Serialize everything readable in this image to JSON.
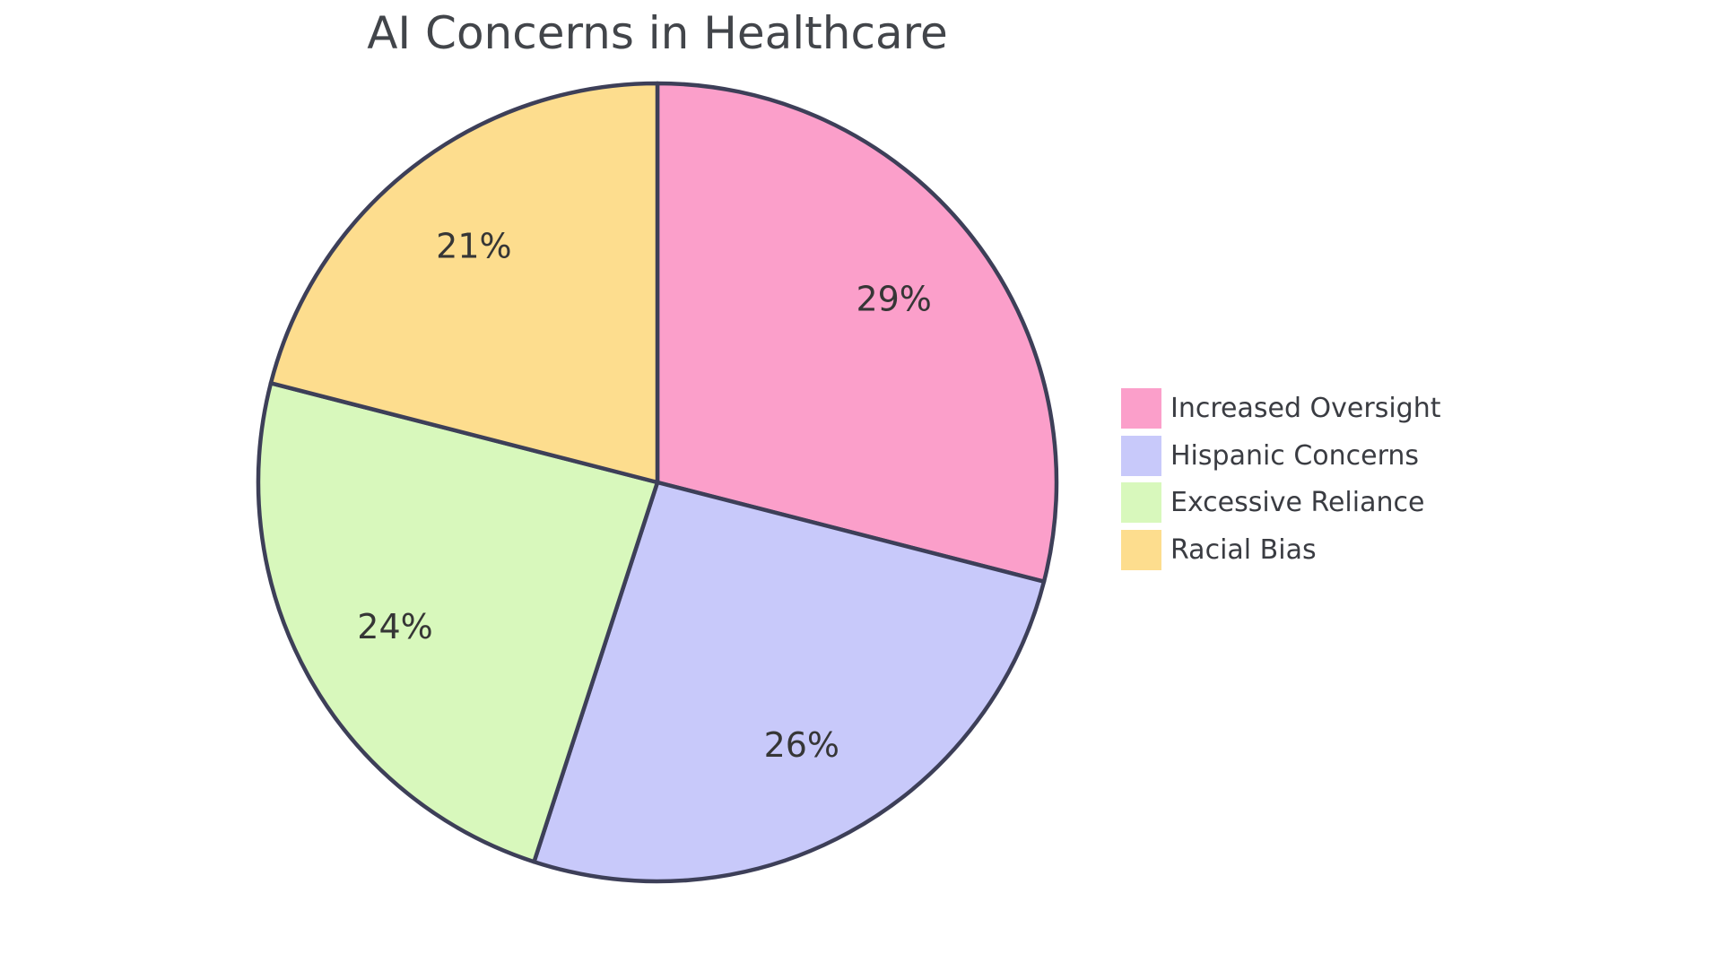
{
  "chart_data": {
    "type": "pie",
    "title": "AI Concerns in Healthcare",
    "labels": [
      "Increased Oversight",
      "Hispanic Concerns",
      "Excessive Reliance",
      "Racial Bias"
    ],
    "values": [
      29,
      26,
      24,
      21
    ],
    "percent_labels": [
      "29%",
      "26%",
      "24%",
      "21%"
    ],
    "colors": [
      "#FB9FCA",
      "#C8C9FA",
      "#D8F8BC",
      "#FDDD8E"
    ],
    "outline_color": "#3D3F58",
    "percent_label_color": "#363636",
    "title_color": "#42454A",
    "legend_text_color": "#3A3C42",
    "background_color": "#FFFFFF",
    "direction": "clockwise",
    "start_angle": "top",
    "legend_position": "right-middle",
    "grid": "off"
  }
}
